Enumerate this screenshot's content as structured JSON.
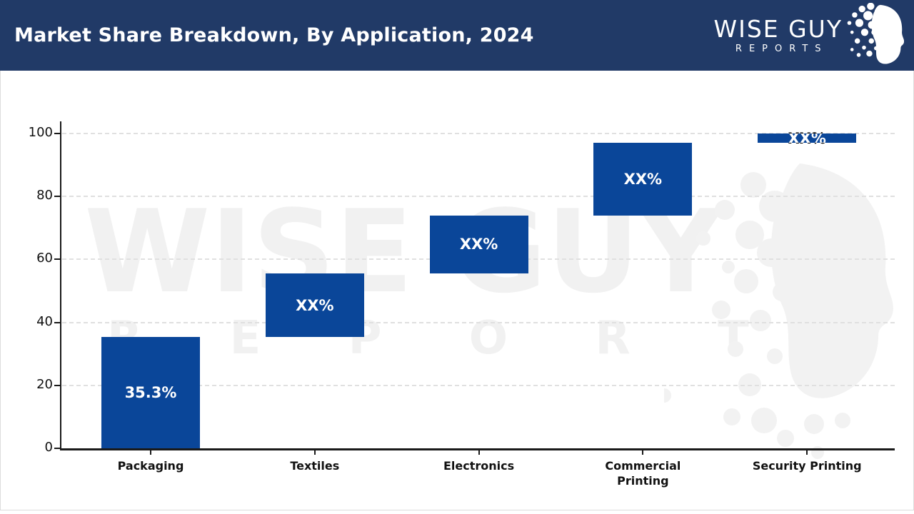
{
  "header": {
    "title": "Market Share Breakdown, By Application, 2024",
    "logo": {
      "line1": "WISE GUY",
      "line2": "REPORTS"
    }
  },
  "watermark": {
    "line1": "WISE GUY",
    "line2": "R E P O R T S"
  },
  "colors": {
    "header_bg": "#213a67",
    "bar": "#0a4699",
    "bar_label": "#ffffff",
    "axis": "#1a1a1a",
    "grid": "#e0e0e0",
    "watermark": "#f1f1f1"
  },
  "chart_data": {
    "type": "bar",
    "subtype": "waterfall",
    "title": "Market Share Breakdown, By Application, 2024",
    "categories": [
      "Packaging",
      "Textiles",
      "Electronics",
      "Commercial Printing",
      "Security Printing"
    ],
    "segments": [
      {
        "category": "Packaging",
        "start": 0,
        "end": 35.3,
        "value": 35.3,
        "label": "35.3%"
      },
      {
        "category": "Textiles",
        "start": 35.3,
        "end": 55.5,
        "value": 20.2,
        "label": "XX%"
      },
      {
        "category": "Electronics",
        "start": 55.5,
        "end": 74.0,
        "value": 18.5,
        "label": "XX%"
      },
      {
        "category": "Commercial Printing",
        "start": 74.0,
        "end": 97.0,
        "value": 23.0,
        "label": "XX%",
        "tick_label": "Commercial\nPrinting"
      },
      {
        "category": "Security Printing",
        "start": 97.0,
        "end": 100.0,
        "value": 3.0,
        "label": "XX%"
      }
    ],
    "yticks": [
      0,
      20,
      40,
      60,
      80,
      100
    ],
    "ylim": [
      0,
      100
    ],
    "xlabel": "",
    "ylabel": "",
    "grid": "dashed-horizontal",
    "legend": null
  }
}
